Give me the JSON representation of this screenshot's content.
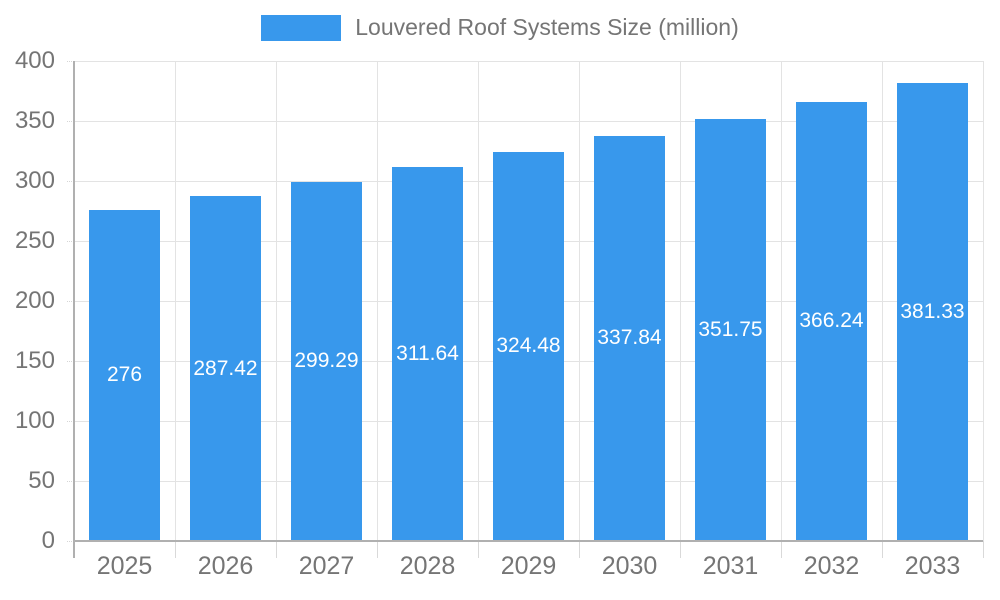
{
  "chart_data": {
    "type": "bar",
    "title": "",
    "legend": {
      "position": "top",
      "label": "Louvered Roof Systems Size (million)"
    },
    "categories": [
      "2025",
      "2026",
      "2027",
      "2028",
      "2029",
      "2030",
      "2031",
      "2032",
      "2033"
    ],
    "series": [
      {
        "name": "Louvered Roof Systems Size (million)",
        "values": [
          276,
          287.42,
          299.29,
          311.64,
          324.48,
          337.84,
          351.75,
          366.24,
          381.33
        ],
        "value_labels": [
          "276",
          "287.42",
          "299.29",
          "311.64",
          "324.48",
          "337.84",
          "351.75",
          "366.24",
          "381.33"
        ]
      }
    ],
    "xlabel": "",
    "ylabel": "",
    "ylim": [
      0,
      400
    ],
    "y_ticks": [
      0,
      50,
      100,
      150,
      200,
      250,
      300,
      350,
      400
    ],
    "grid": true,
    "value_label_position": "center",
    "colors": {
      "bar": "#3898ec",
      "grid": "#e3e3e3",
      "axis": "#b0b0b0",
      "tick_text": "#757575",
      "legend_text": "#757575",
      "value_text": "#ffffff"
    }
  }
}
